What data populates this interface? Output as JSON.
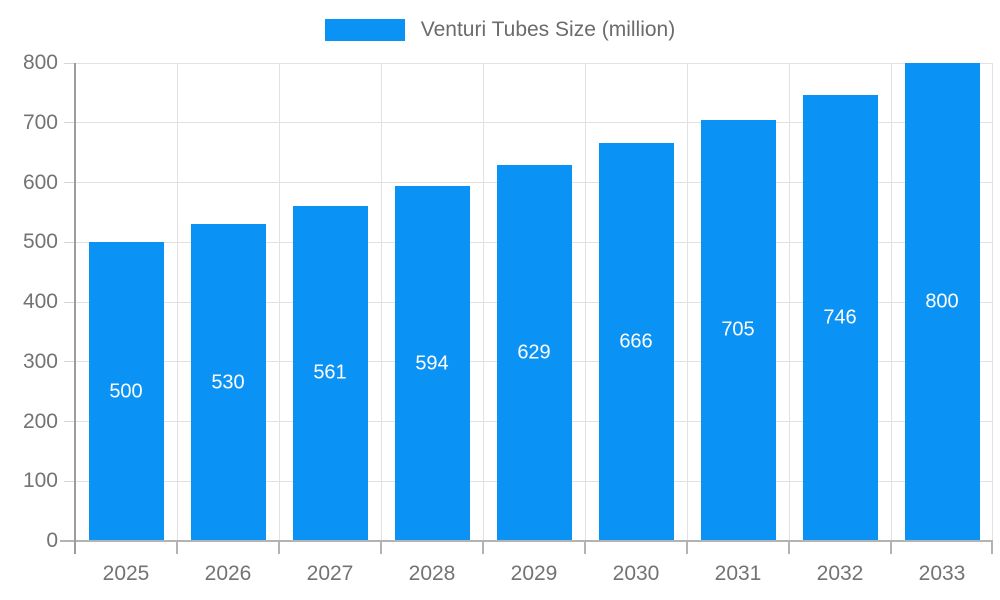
{
  "legend": {
    "label": "Venturi Tubes Size (million)"
  },
  "chart_data": {
    "type": "bar",
    "title": "",
    "xlabel": "",
    "ylabel": "",
    "series_name": "Venturi Tubes Size (million)",
    "categories": [
      "2025",
      "2026",
      "2027",
      "2028",
      "2029",
      "2030",
      "2031",
      "2032",
      "2033"
    ],
    "values": [
      500,
      530,
      561,
      594,
      629,
      666,
      705,
      746,
      800
    ],
    "ylim": [
      0,
      800
    ],
    "y_ticks": [
      0,
      100,
      200,
      300,
      400,
      500,
      600,
      700,
      800
    ],
    "grid": true,
    "legend_position": "top",
    "bar_color": "#0a92f5",
    "value_label_color": "#ffffff",
    "axis_text_color": "#737373"
  }
}
